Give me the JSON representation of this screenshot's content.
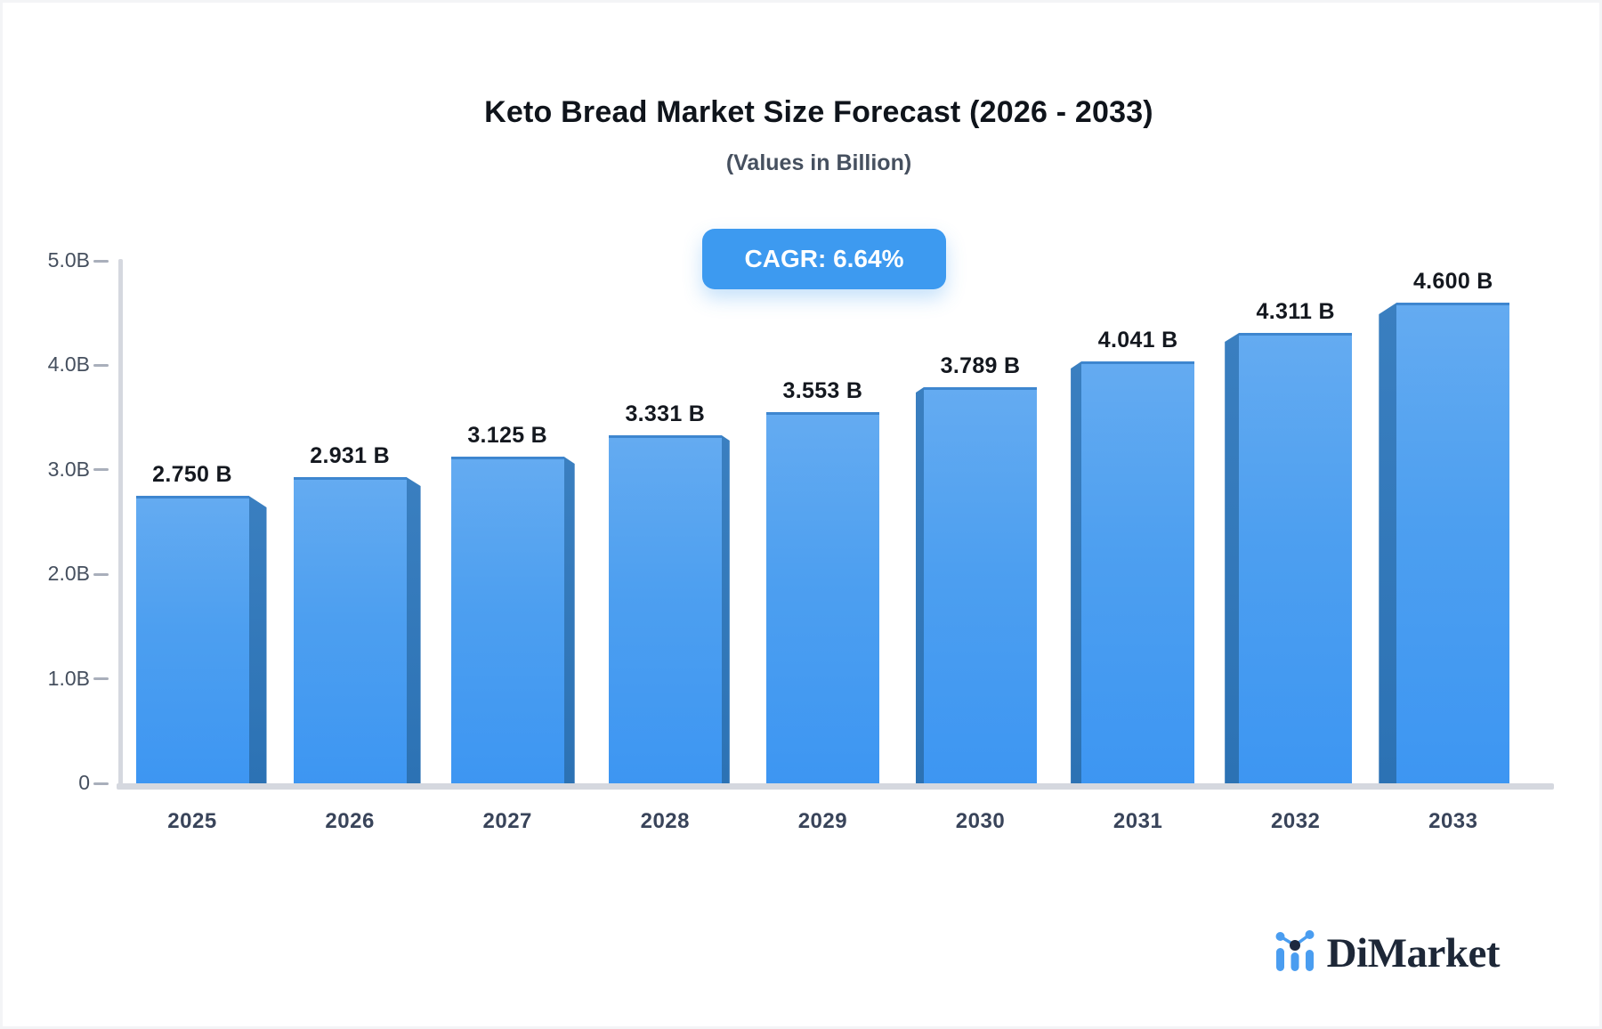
{
  "header": {
    "title": "Keto Bread Market Size Forecast (2026 - 2033)",
    "subtitle": "(Values in Billion)",
    "cagr_badge": "CAGR: 6.64%"
  },
  "chart_data": {
    "type": "bar",
    "title": "Keto Bread Market Size Forecast (2026 - 2033)",
    "subtitle": "(Values in Billion)",
    "annotation": "CAGR: 6.64%",
    "unit": "Billion",
    "categories": [
      "2025",
      "2026",
      "2027",
      "2028",
      "2029",
      "2030",
      "2031",
      "2032",
      "2033"
    ],
    "values": [
      2.75,
      2.931,
      3.125,
      3.331,
      3.553,
      3.789,
      4.041,
      4.311,
      4.6
    ],
    "value_labels": [
      "2.750 B",
      "2.931 B",
      "3.125 B",
      "3.331 B",
      "3.553 B",
      "3.789 B",
      "4.041 B",
      "4.311 B",
      "4.600 B"
    ],
    "ylim": [
      0,
      5
    ],
    "y_ticks": [
      {
        "value": 0,
        "label": "0"
      },
      {
        "value": 1,
        "label": "1.0B"
      },
      {
        "value": 2,
        "label": "2.0B"
      },
      {
        "value": 3,
        "label": "3.0B"
      },
      {
        "value": 4,
        "label": "4.0B"
      },
      {
        "value": 5,
        "label": "5.0B"
      }
    ],
    "grid": false,
    "legend": false,
    "bar_style": "3d-perspective-center-vanishing"
  },
  "colors": {
    "accent": "#3d9af0",
    "bar_face_top": "#64abf1",
    "bar_face_mid": "#4d9ff0",
    "bar_face_bottom": "#3d96f2",
    "bar_face_edge": "#3e86cf",
    "bar_side_top": "#3a7fc0",
    "bar_side_bottom": "#2c72b4",
    "axis_line": "#d5d8df",
    "tick_mark": "#a9afbb",
    "y_label_text": "#454f5e",
    "x_label_text": "#39445a",
    "value_label_text": "#14181f",
    "title_text": "#0f141b",
    "subtitle_text": "#46505f",
    "badge_text": "#ffffff",
    "logo_blue": "#4a9df0",
    "logo_dark": "#1d2940"
  },
  "footer": {
    "brand": "DiMarket",
    "logo_icon": "bar-chart-with-trend-dots-icon"
  }
}
